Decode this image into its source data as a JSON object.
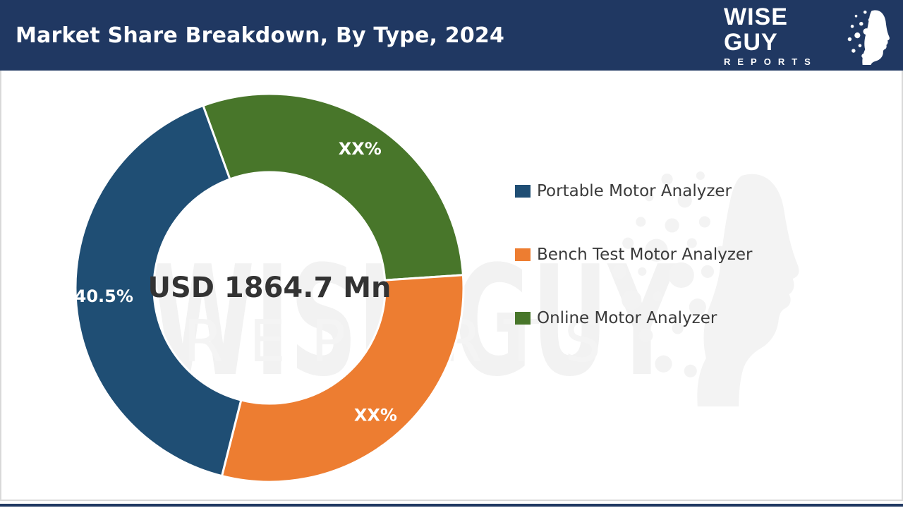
{
  "header": {
    "title": "Market Share Breakdown, By Type, 2024",
    "logo": {
      "brand": "WISE GUY",
      "sub": "REPORTS"
    }
  },
  "watermark": {
    "brand": "WISE GUY",
    "sub": "REPORTS"
  },
  "chart_data": {
    "type": "pie",
    "donut": true,
    "title": "Market Share Breakdown, By Type, 2024",
    "center_label": "USD 1864.7 Mn",
    "legend_position": "right",
    "start_angle_deg": -20,
    "draw_order": [
      2,
      1,
      0
    ],
    "segments": [
      {
        "name": "Portable Motor Analyzer",
        "value_pct": 40.5,
        "label": "40.5%",
        "color": "#1f4e74"
      },
      {
        "name": "Bench Test Motor Analyzer",
        "value_pct": 30.0,
        "label": "XX%",
        "color": "#ed7d31"
      },
      {
        "name": "Online Motor Analyzer",
        "value_pct": 29.5,
        "label": "XX%",
        "color": "#48762a"
      }
    ]
  },
  "colors": {
    "header_bg": "#203862",
    "footer_bg": "#203862",
    "content_border": "#d9d9d9",
    "center_text": "#333333",
    "legend_text": "#3a3a3a",
    "segment_label_text": "#ffffff",
    "watermark": "#f2f2f2"
  }
}
